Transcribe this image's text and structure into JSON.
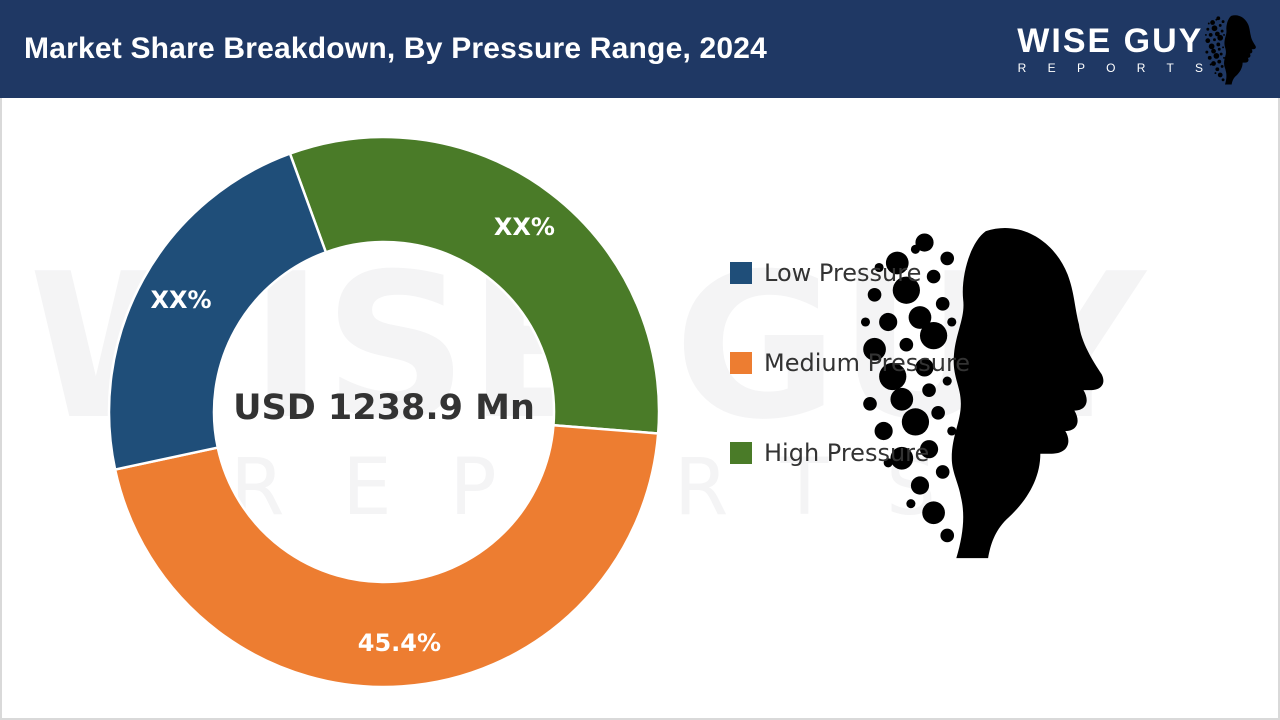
{
  "header": {
    "title": "Market Share Breakdown, By Pressure Range, 2024",
    "background_color": "#1F3864",
    "brand": {
      "line1": "WISE GUY",
      "line2": "R E P O R T S"
    }
  },
  "watermark": {
    "line1": "WISE GUY",
    "line2": "REPORTS"
  },
  "chart_data": {
    "type": "pie",
    "subtype": "donut",
    "title": "Market Share Breakdown, By Pressure Range, 2024",
    "center_label": "USD 1238.9 Mn",
    "start_angle_deg": -20,
    "slices": [
      {
        "name": "High Pressure",
        "label": "XX%",
        "value_pct": 31.8,
        "color": "#4A7B28"
      },
      {
        "name": "Medium Pressure",
        "label": "45.4%",
        "value_pct": 45.4,
        "color": "#ED7D31"
      },
      {
        "name": "Low Pressure",
        "label": "XX%",
        "value_pct": 22.8,
        "color": "#1F4E79"
      }
    ],
    "legend_position": "right",
    "legend": [
      {
        "label": "Low Pressure",
        "color": "#1F4E79"
      },
      {
        "label": "Medium Pressure",
        "color": "#ED7D31"
      },
      {
        "label": "High Pressure",
        "color": "#4A7B28"
      }
    ]
  }
}
